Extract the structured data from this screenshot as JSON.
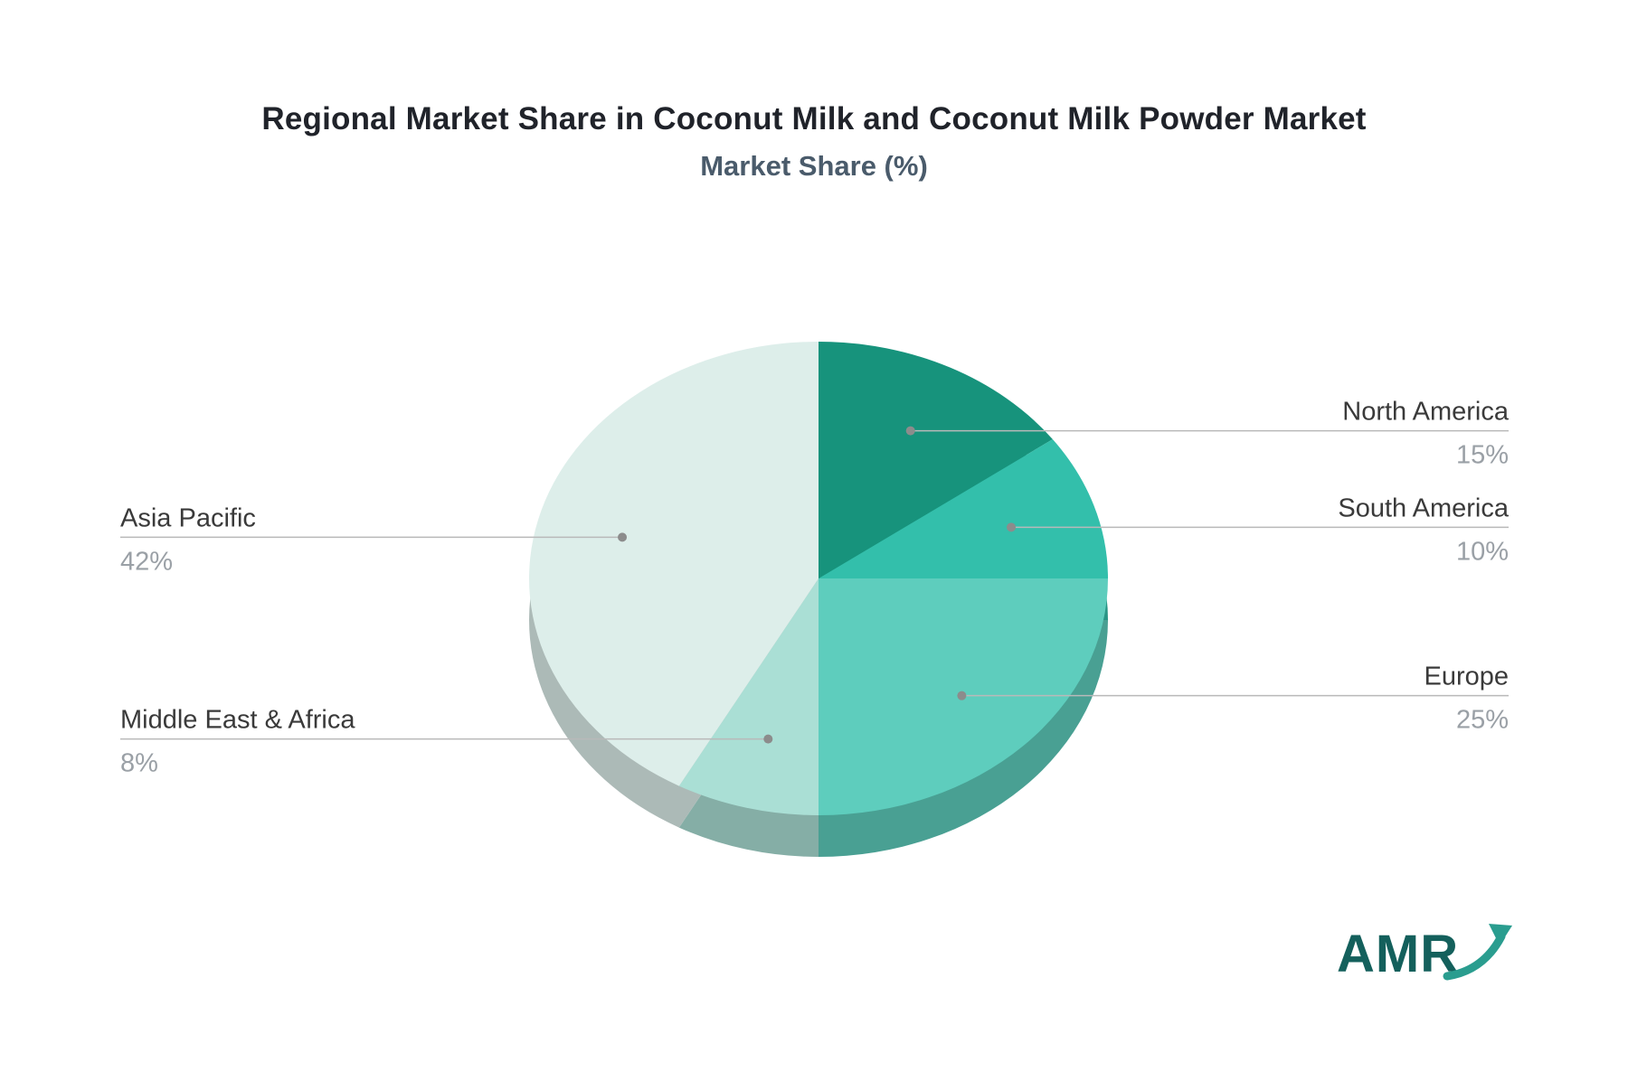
{
  "title": "Regional Market Share in Coconut Milk and Coconut Milk Powder Market",
  "subtitle": "Market Share (%)",
  "logo": {
    "text": "AMR"
  },
  "chart_data": {
    "type": "pie",
    "title": "Regional Market Share in Coconut Milk and Coconut Milk Powder Market",
    "subtitle": "Market Share (%)",
    "unit": "%",
    "effect": "3d",
    "start_angle_deg": -90,
    "direction": "clockwise",
    "legend_position": "callout-labels",
    "slices": [
      {
        "label": "North America",
        "value": 15,
        "color": "#17937c"
      },
      {
        "label": "South America",
        "value": 10,
        "color": "#33bfab"
      },
      {
        "label": "Europe",
        "value": 25,
        "color": "#5ecdbd"
      },
      {
        "label": "Middle East & Africa",
        "value": 8,
        "color": "#aadfd5"
      },
      {
        "label": "Asia Pacific",
        "value": 42,
        "color": "#ddeeea"
      }
    ],
    "label_name_color": "#3a3a3a",
    "label_value_color": "#9aa0a6",
    "leader_line_color": "#b9b9b9",
    "leader_dot_color": "#8c8c8c"
  }
}
